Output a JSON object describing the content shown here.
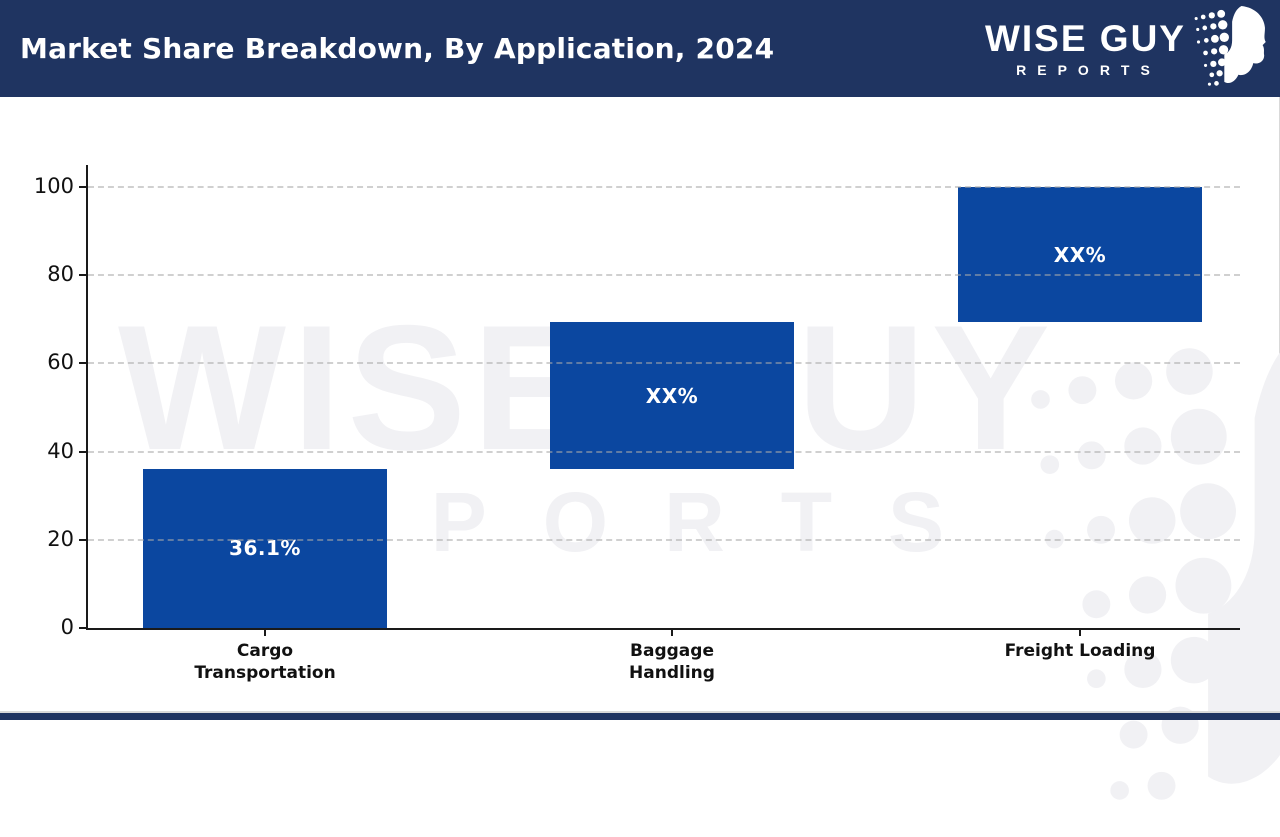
{
  "header": {
    "title": "Market Share Breakdown, By Application, 2024",
    "logo": {
      "line1": "WISE GUY",
      "line2": "REPORTS"
    }
  },
  "watermark": {
    "line1": "WISE GUY",
    "line2": "REPORTS"
  },
  "colors": {
    "navy": "#1f3461",
    "bar_blue": "#0b47a0",
    "watermark_gray": "#f1f1f4",
    "grid_gray": "#aaaaaa",
    "text_black": "#111111",
    "bar_label_white": "#ffffff"
  },
  "chart_data": {
    "type": "bar",
    "subtype": "floating-waterfall",
    "title": "Market Share Breakdown, By Application, 2024",
    "categories": [
      "Cargo Transportation",
      "Baggage Handling",
      "Freight Loading"
    ],
    "segments": [
      {
        "category": "Cargo Transportation",
        "base": 0,
        "top": 36.1,
        "label": "36.1%"
      },
      {
        "category": "Baggage Handling",
        "base": 36.1,
        "top": 69.3,
        "label": "XX%"
      },
      {
        "category": "Freight Loading",
        "base": 69.3,
        "top": 100,
        "label": "XX%"
      }
    ],
    "yticks": [
      0,
      20,
      40,
      60,
      80,
      100
    ],
    "ylim": [
      0,
      105
    ],
    "xlabel": "",
    "ylabel": "",
    "grid": "horizontal-dashed",
    "legend": "none",
    "bar_color": "#0b47a0",
    "bar_label_color": "#ffffff"
  }
}
